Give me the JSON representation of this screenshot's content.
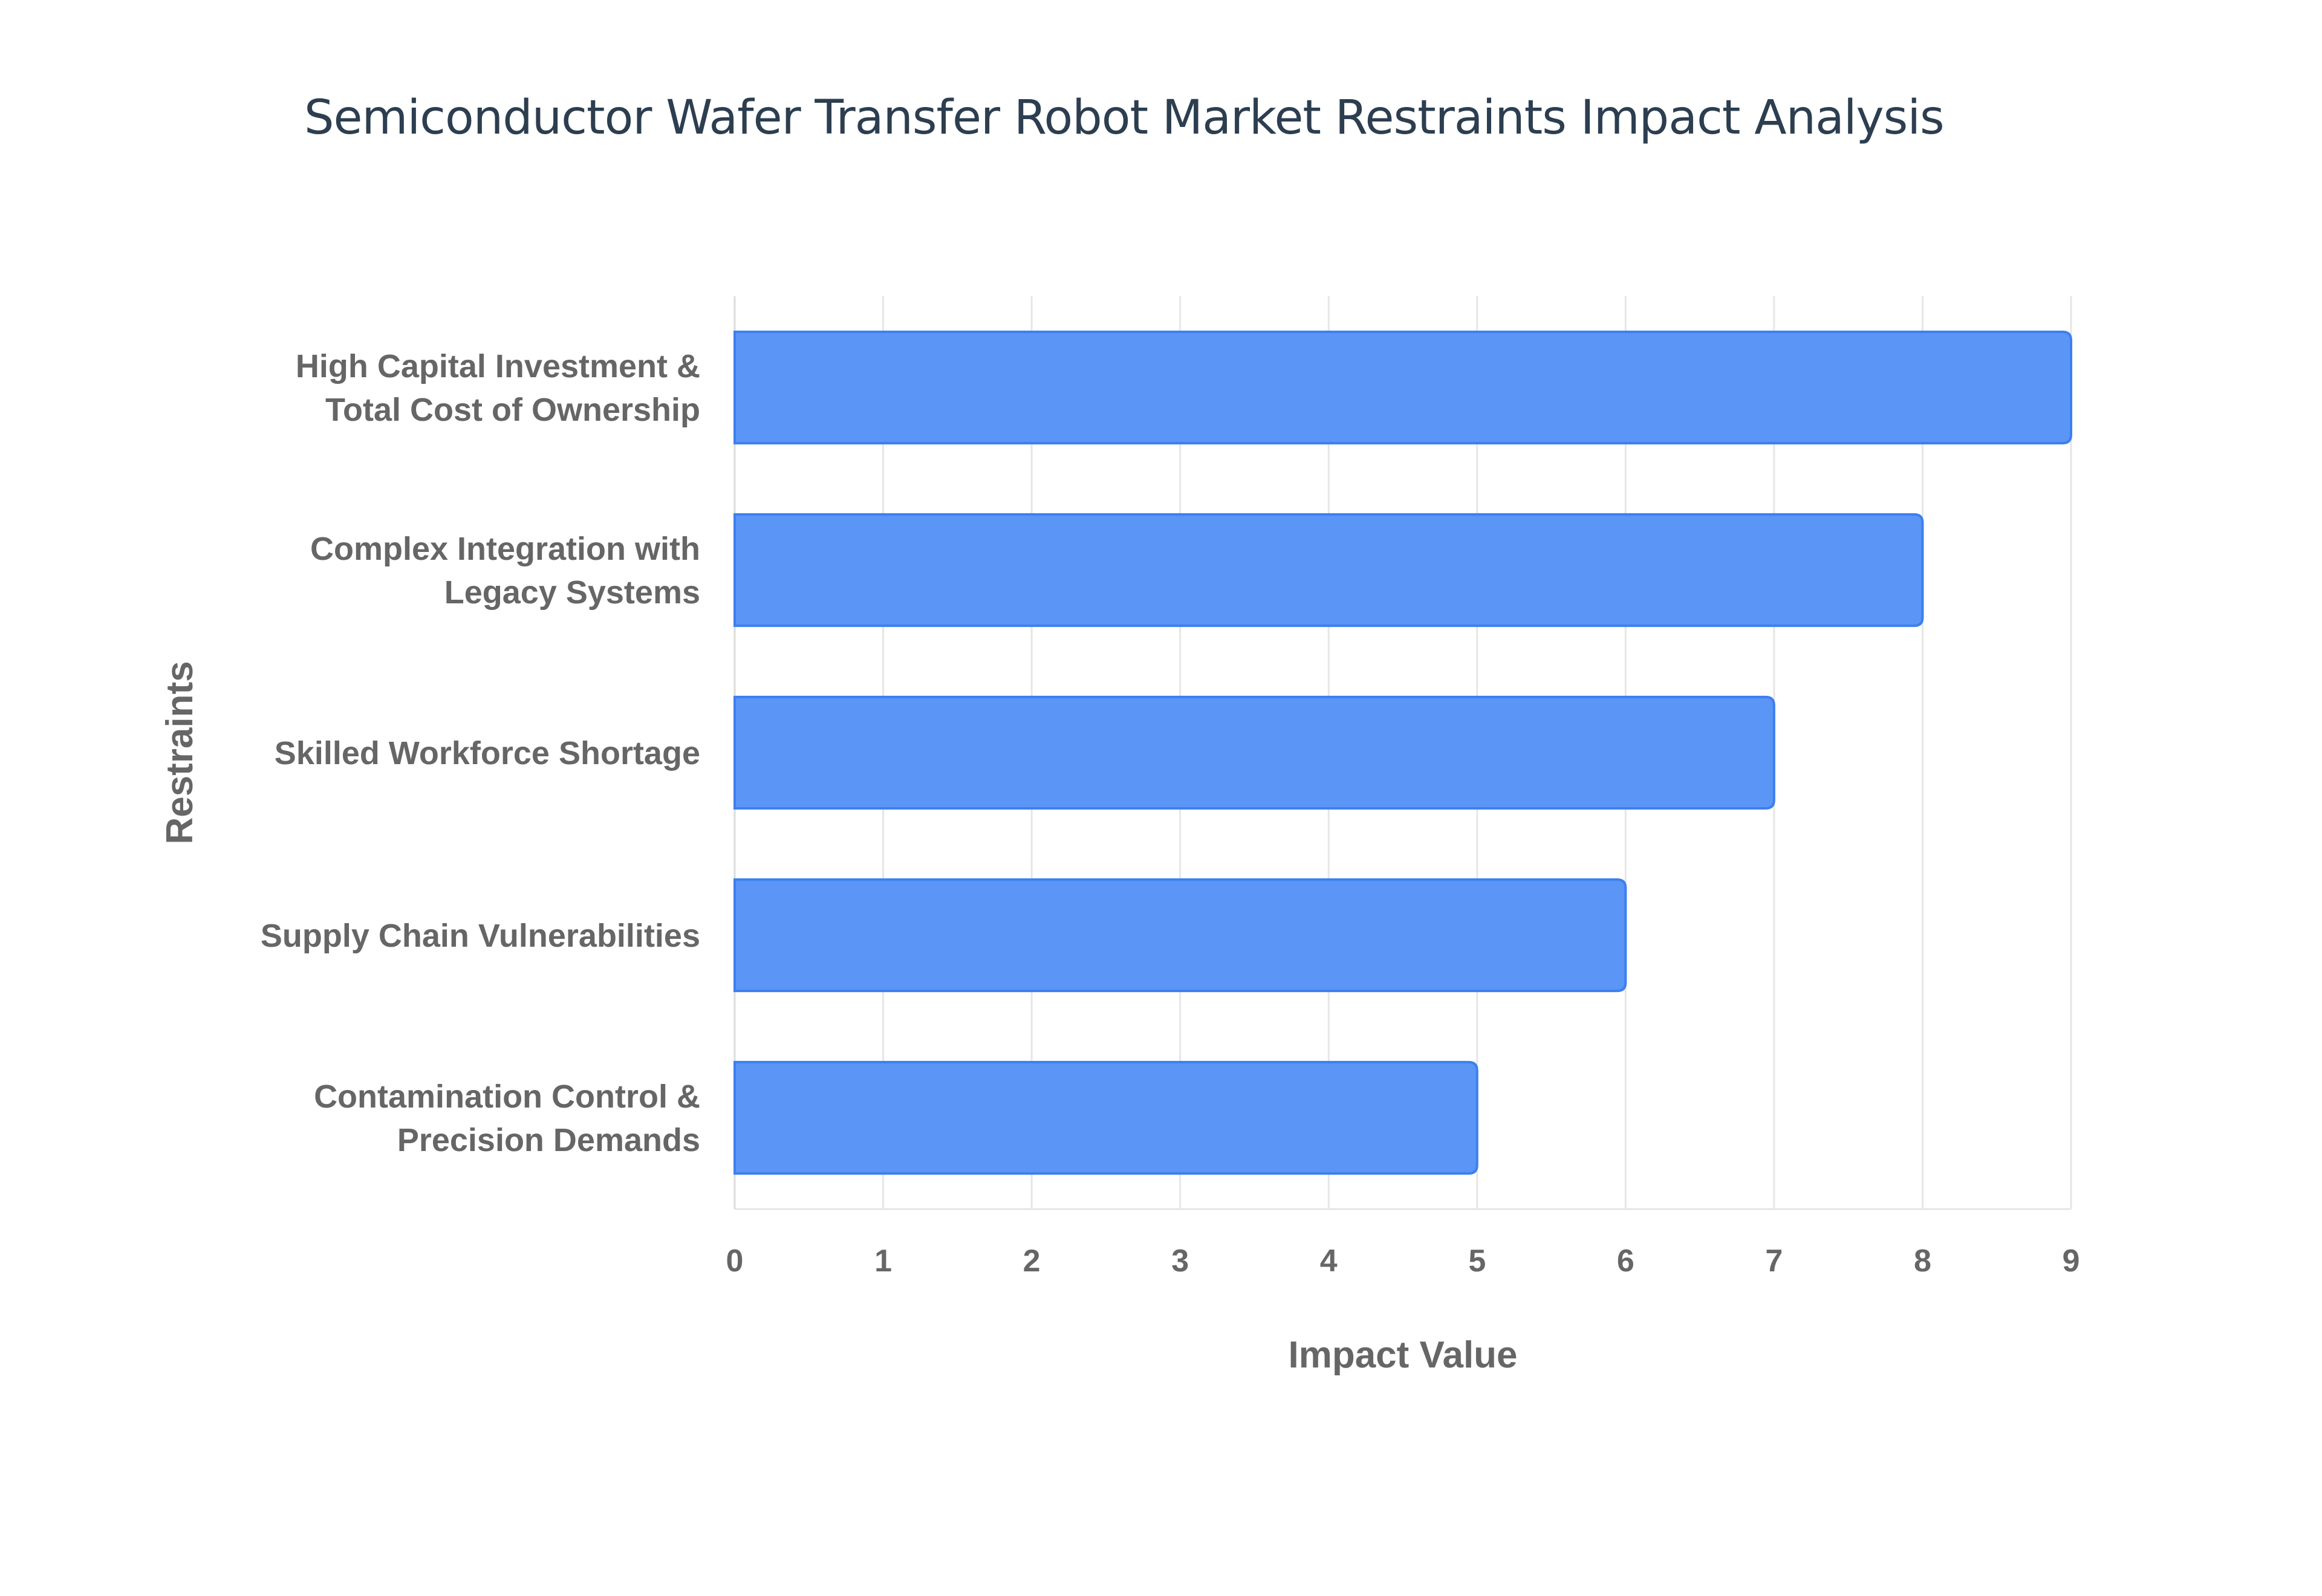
{
  "chart_data": {
    "type": "bar",
    "orientation": "horizontal",
    "title": "Semiconductor Wafer Transfer Robot Market Restraints Impact Analysis",
    "xlabel": "Impact Value",
    "ylabel": "Restraints",
    "categories": [
      [
        "High Capital Investment &",
        "Total Cost of Ownership"
      ],
      [
        "Complex Integration with",
        "Legacy Systems"
      ],
      [
        "Skilled Workforce Shortage"
      ],
      [
        "Supply Chain Vulnerabilities"
      ],
      [
        "Contamination Control &",
        "Precision Demands"
      ]
    ],
    "values": [
      9,
      8,
      7,
      6,
      5
    ],
    "xlim": [
      0,
      9
    ],
    "xticks": [
      "0",
      "1",
      "2",
      "3",
      "4",
      "5",
      "6",
      "7",
      "8",
      "9"
    ],
    "grid": true,
    "legend": "none",
    "colors": {
      "bar_fill": "#5b95f5",
      "bar_stroke": "#3d7ff0",
      "grid": "#e6e6e6",
      "text": "#666666",
      "title": "#2c3e50"
    }
  }
}
